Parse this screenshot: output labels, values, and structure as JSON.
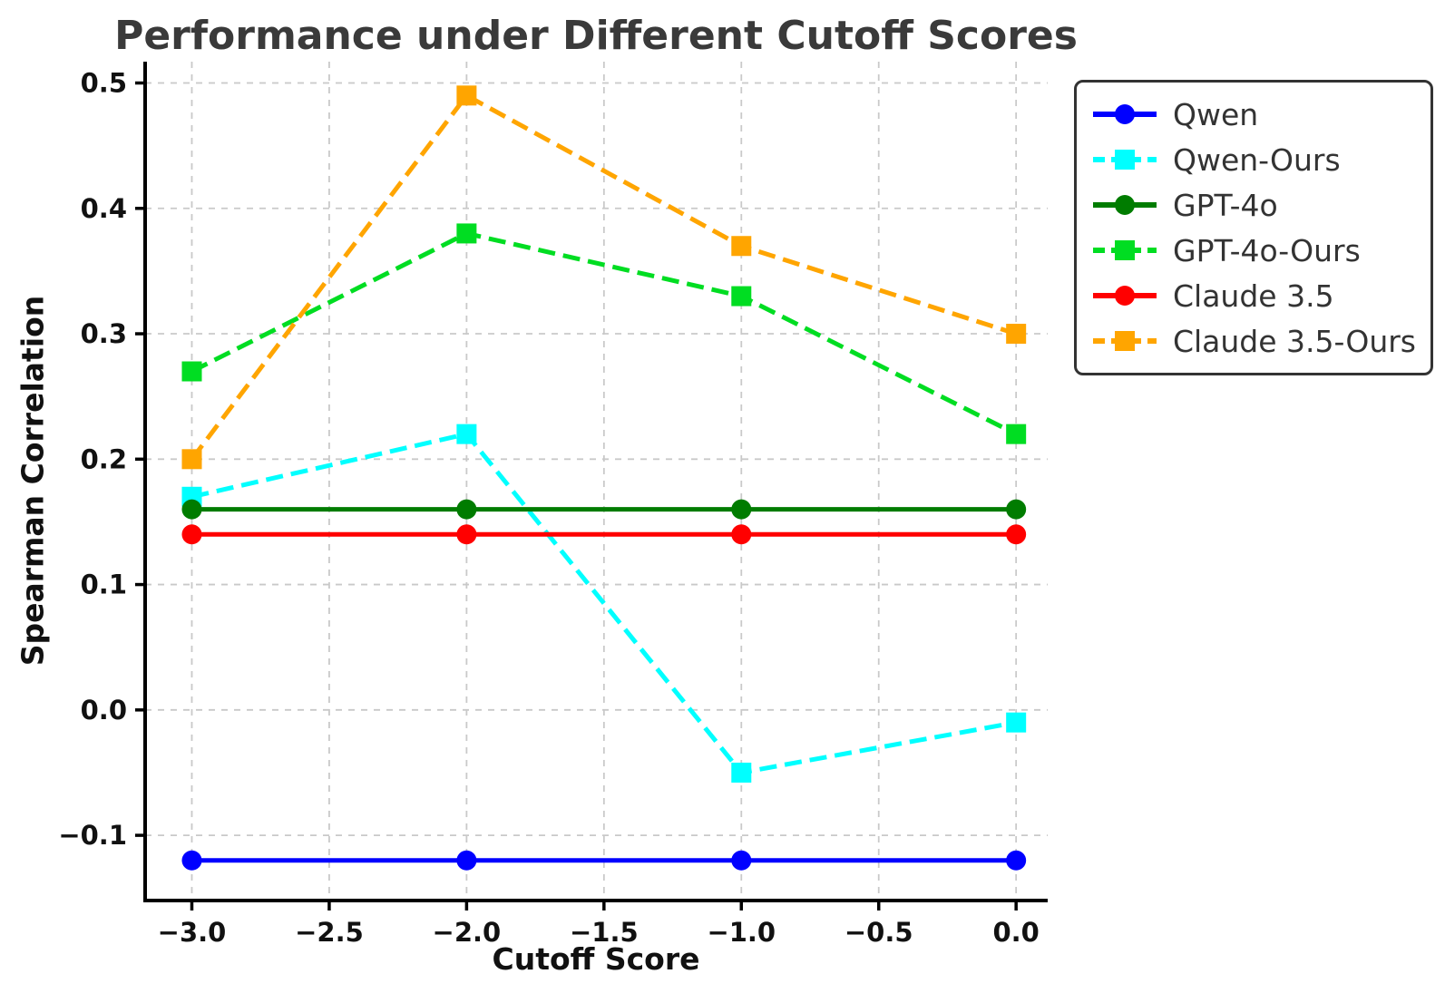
{
  "chart_data": {
    "type": "line",
    "title": "Performance under Different Cutoff Scores",
    "xlabel": "Cutoff Score",
    "ylabel": "Spearman Correlation",
    "x": [
      -3.0,
      -2.0,
      -1.0,
      0.0
    ],
    "xlim": [
      -3.17,
      0.115
    ],
    "ylim": [
      -0.152,
      0.517
    ],
    "grid": true,
    "legend_position": "outside upper right",
    "xticks": {
      "values": [
        -3.0,
        -2.5,
        -2.0,
        -1.5,
        -1.0,
        -0.5,
        0.0
      ],
      "labels": [
        "−3.0",
        "−2.5",
        "−2.0",
        "−1.5",
        "−1.0",
        "−0.5",
        "0.0"
      ]
    },
    "yticks": {
      "values": [
        -0.1,
        0.0,
        0.1,
        0.2,
        0.3,
        0.4,
        0.5
      ],
      "labels": [
        "−0.1",
        "0.0",
        "0.1",
        "0.2",
        "0.3",
        "0.4",
        "0.5"
      ]
    },
    "series": [
      {
        "name": "Qwen",
        "color": "#0000FF",
        "linestyle": "solid",
        "marker": "circle",
        "values": [
          -0.12,
          -0.12,
          -0.12,
          -0.12
        ]
      },
      {
        "name": "Qwen-Ours",
        "color": "#00FFFF",
        "linestyle": "dashed",
        "marker": "square",
        "values": [
          0.17,
          0.22,
          -0.05,
          -0.01
        ]
      },
      {
        "name": "GPT-4o",
        "color": "#007C00",
        "linestyle": "solid",
        "marker": "circle",
        "values": [
          0.16,
          0.16,
          0.16,
          0.16
        ]
      },
      {
        "name": "GPT-4o-Ours",
        "color": "#00DD22",
        "linestyle": "dashed",
        "marker": "square",
        "values": [
          0.27,
          0.38,
          0.33,
          0.22
        ]
      },
      {
        "name": "Claude 3.5",
        "color": "#FF0000",
        "linestyle": "solid",
        "marker": "circle",
        "values": [
          0.14,
          0.14,
          0.14,
          0.14
        ]
      },
      {
        "name": "Claude 3.5-Ours",
        "color": "#FFA500",
        "linestyle": "dashed",
        "marker": "square",
        "values": [
          0.2,
          0.49,
          0.37,
          0.3
        ]
      }
    ],
    "colors": {
      "grid": "#C9C9C9",
      "spine": "#000000",
      "title": "#3A3A3A",
      "tick_label": "#111111",
      "legend_border": "#333333",
      "legend_text": "#333333"
    }
  }
}
